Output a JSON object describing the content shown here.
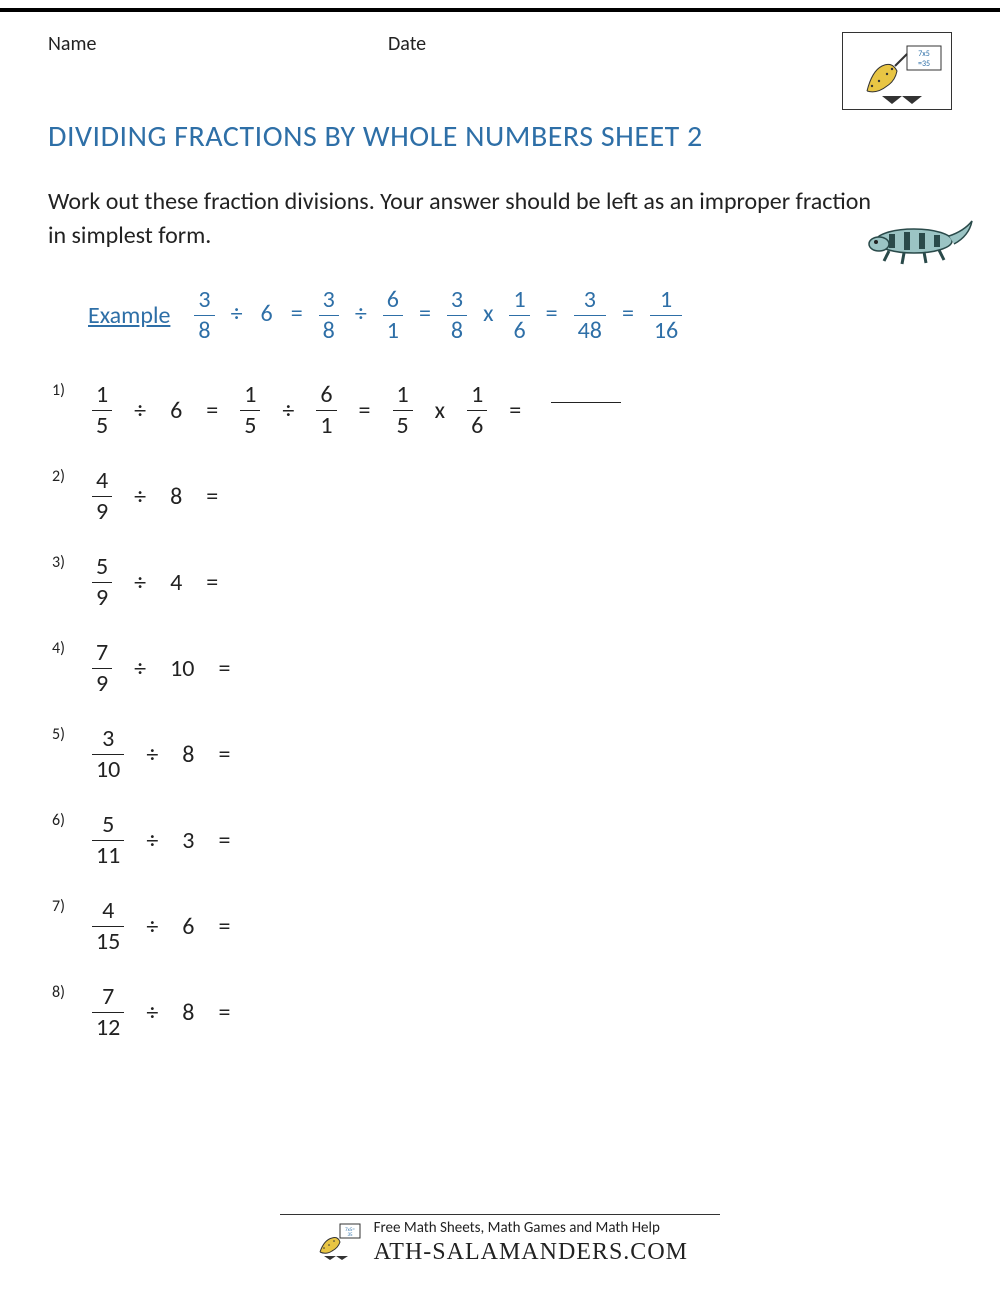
{
  "header": {
    "name_label": "Name",
    "date_label": "Date"
  },
  "title": "DIVIDING FRACTIONS BY WHOLE NUMBERS SHEET 2",
  "instructions": "Work out these fraction divisions. Your answer should be left as an improper fraction in simplest form.",
  "colors": {
    "accent": "#2E6FA7",
    "text": "#222222",
    "lizard_body": "#9BC4C4",
    "lizard_dark": "#2a4a4a",
    "salamander": "#E8C544"
  },
  "example": {
    "label": "Example",
    "steps": [
      {
        "type": "frac",
        "num": "3",
        "den": "8"
      },
      {
        "type": "op",
        "val": "÷"
      },
      {
        "type": "whole",
        "val": "6"
      },
      {
        "type": "op",
        "val": "="
      },
      {
        "type": "frac",
        "num": "3",
        "den": "8"
      },
      {
        "type": "op",
        "val": "÷"
      },
      {
        "type": "frac",
        "num": "6",
        "den": "1"
      },
      {
        "type": "op",
        "val": "="
      },
      {
        "type": "frac",
        "num": "3",
        "den": "8"
      },
      {
        "type": "op",
        "val": "x"
      },
      {
        "type": "frac",
        "num": "1",
        "den": "6"
      },
      {
        "type": "op",
        "val": "="
      },
      {
        "type": "frac",
        "num": "3",
        "den": "48"
      },
      {
        "type": "op",
        "val": "="
      },
      {
        "type": "frac",
        "num": "1",
        "den": "16"
      }
    ]
  },
  "problems": [
    {
      "n": "1)",
      "steps": [
        {
          "type": "frac",
          "num": "1",
          "den": "5"
        },
        {
          "type": "op",
          "val": "÷"
        },
        {
          "type": "whole",
          "val": "6"
        },
        {
          "type": "op",
          "val": "="
        },
        {
          "type": "frac",
          "num": "1",
          "den": "5"
        },
        {
          "type": "op",
          "val": "÷"
        },
        {
          "type": "frac",
          "num": "6",
          "den": "1"
        },
        {
          "type": "op",
          "val": "="
        },
        {
          "type": "frac",
          "num": "1",
          "den": "5"
        },
        {
          "type": "op",
          "val": "x"
        },
        {
          "type": "frac",
          "num": "1",
          "den": "6"
        },
        {
          "type": "op",
          "val": "="
        },
        {
          "type": "blank"
        }
      ]
    },
    {
      "n": "2)",
      "steps": [
        {
          "type": "frac",
          "num": "4",
          "den": "9"
        },
        {
          "type": "op",
          "val": "÷"
        },
        {
          "type": "whole",
          "val": "8"
        },
        {
          "type": "op",
          "val": "="
        }
      ]
    },
    {
      "n": "3)",
      "steps": [
        {
          "type": "frac",
          "num": "5",
          "den": "9"
        },
        {
          "type": "op",
          "val": "÷"
        },
        {
          "type": "whole",
          "val": "4"
        },
        {
          "type": "op",
          "val": "="
        }
      ]
    },
    {
      "n": "4)",
      "steps": [
        {
          "type": "frac",
          "num": "7",
          "den": "9"
        },
        {
          "type": "op",
          "val": "÷"
        },
        {
          "type": "whole",
          "val": "10"
        },
        {
          "type": "op",
          "val": "="
        }
      ]
    },
    {
      "n": "5)",
      "steps": [
        {
          "type": "frac",
          "num": "3",
          "den": "10"
        },
        {
          "type": "op",
          "val": "÷"
        },
        {
          "type": "whole",
          "val": "8"
        },
        {
          "type": "op",
          "val": "="
        }
      ]
    },
    {
      "n": "6)",
      "steps": [
        {
          "type": "frac",
          "num": "5",
          "den": "11"
        },
        {
          "type": "op",
          "val": "÷"
        },
        {
          "type": "whole",
          "val": "3"
        },
        {
          "type": "op",
          "val": "="
        }
      ]
    },
    {
      "n": "7)",
      "steps": [
        {
          "type": "frac",
          "num": "4",
          "den": "15"
        },
        {
          "type": "op",
          "val": "÷"
        },
        {
          "type": "whole",
          "val": "6"
        },
        {
          "type": "op",
          "val": "="
        }
      ]
    },
    {
      "n": "8)",
      "steps": [
        {
          "type": "frac",
          "num": "7",
          "den": "12"
        },
        {
          "type": "op",
          "val": "÷"
        },
        {
          "type": "whole",
          "val": "8"
        },
        {
          "type": "op",
          "val": "="
        }
      ]
    }
  ],
  "footer": {
    "tagline": "Free Math Sheets, Math Games and Math Help",
    "brand": "ATH-SALAMANDERS.COM"
  }
}
